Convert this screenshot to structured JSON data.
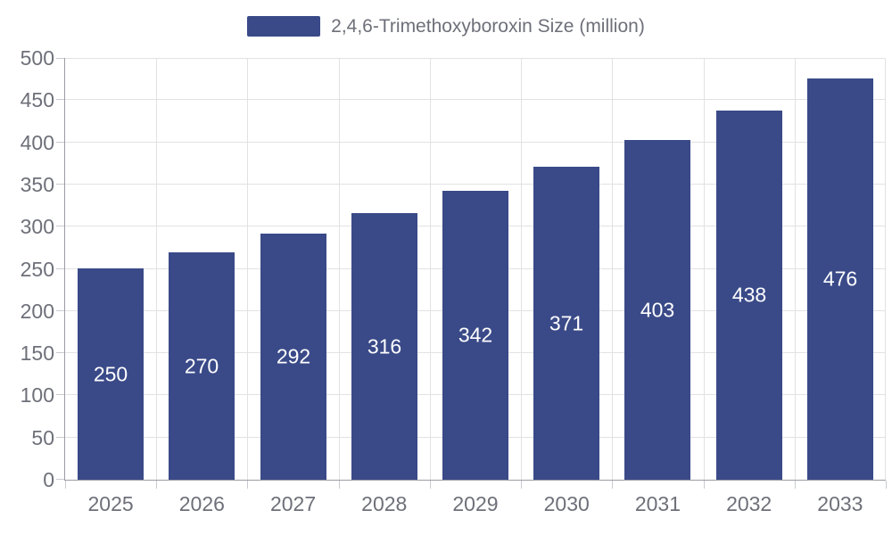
{
  "chart_data": {
    "type": "bar",
    "title": "2,4,6-Trimethoxyboroxin Size (million)",
    "series_name": "2,4,6-Trimethoxyboroxin Size (million)",
    "categories": [
      "2025",
      "2026",
      "2027",
      "2028",
      "2029",
      "2030",
      "2031",
      "2032",
      "2033"
    ],
    "values": [
      250,
      270,
      292,
      316,
      342,
      371,
      403,
      438,
      476
    ],
    "xlabel": "",
    "ylabel": "",
    "ylim": [
      0,
      500
    ],
    "ytick_step": 50,
    "grid": true,
    "legend_position": "top",
    "colors": {
      "bar": "#3a4a88",
      "bar_label": "#ffffff",
      "axis_line": "#9b9da3",
      "tick": "#c9cbd0",
      "gridline": "#e2e2e5",
      "axis_text": "#6e7079",
      "legend_text": "#6e7079",
      "background": "#ffffff"
    }
  }
}
